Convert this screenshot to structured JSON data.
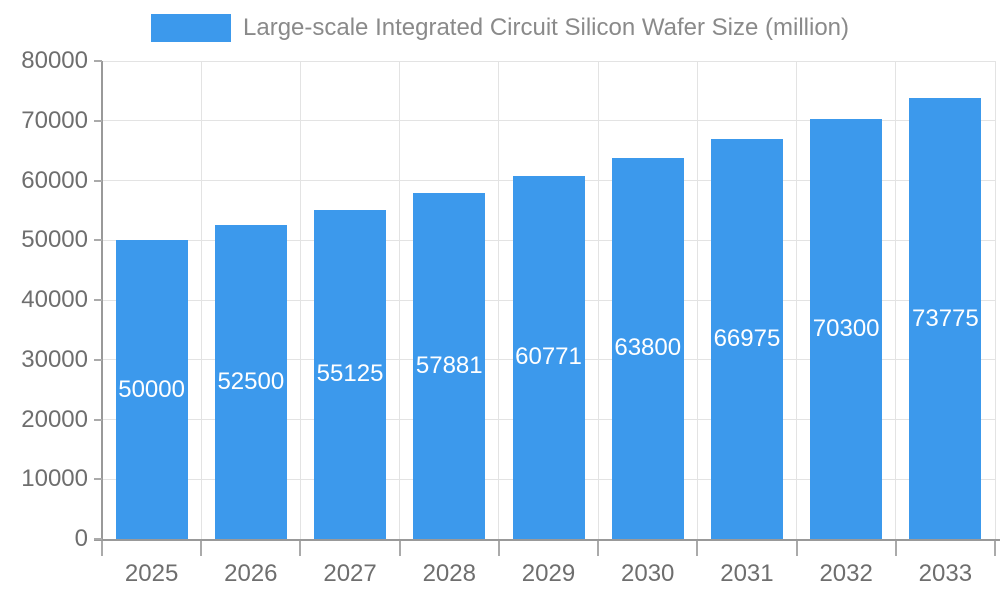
{
  "chart_data": {
    "type": "bar",
    "title": "Large-scale Integrated Circuit Silicon Wafer Size (million)",
    "legend": [
      "Large-scale Integrated Circuit Silicon Wafer Size (million)"
    ],
    "legend_position": "top",
    "categories": [
      "2025",
      "2026",
      "2027",
      "2028",
      "2029",
      "2030",
      "2031",
      "2032",
      "2033"
    ],
    "values": [
      50000,
      52500,
      55125,
      57881,
      60771,
      63800,
      66975,
      70300,
      73775
    ],
    "value_labels": [
      "50000",
      "52500",
      "55125",
      "57881",
      "60771",
      "63800",
      "66975",
      "70300",
      "73775"
    ],
    "xlabel": "",
    "ylabel": "",
    "ylim": [
      0,
      80000
    ],
    "ytick_step": 10000,
    "ytick_labels": [
      "0",
      "10000",
      "20000",
      "30000",
      "40000",
      "50000",
      "60000",
      "70000",
      "80000"
    ],
    "grid": true,
    "colors": {
      "bar": "#3C99EC",
      "grid": "#E3E3E3",
      "axis": "#999999",
      "tick": "#AAAAAA",
      "axis_label": "#6E6E6E",
      "legend_text": "#8A8A8A",
      "value_label": "#FFFFFF",
      "background": "#FFFFFF"
    }
  }
}
